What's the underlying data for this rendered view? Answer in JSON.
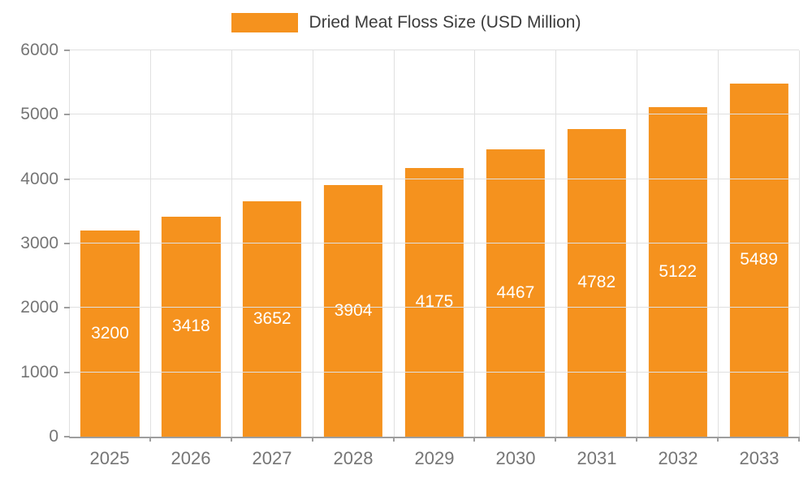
{
  "chart_data": {
    "type": "bar",
    "title": "Dried Meat Floss Size (USD Million)",
    "categories": [
      "2025",
      "2026",
      "2027",
      "2028",
      "2029",
      "2030",
      "2031",
      "2032",
      "2033"
    ],
    "values": [
      3200,
      3418,
      3652,
      3904,
      4175,
      4467,
      4782,
      5122,
      5489
    ],
    "xlabel": "",
    "ylabel": "",
    "ylim": [
      0,
      6000
    ],
    "ytick_step": 1000,
    "grid": true,
    "legend_position": "top",
    "bar_color": "#F5921E",
    "value_label_color": "#ffffff"
  }
}
